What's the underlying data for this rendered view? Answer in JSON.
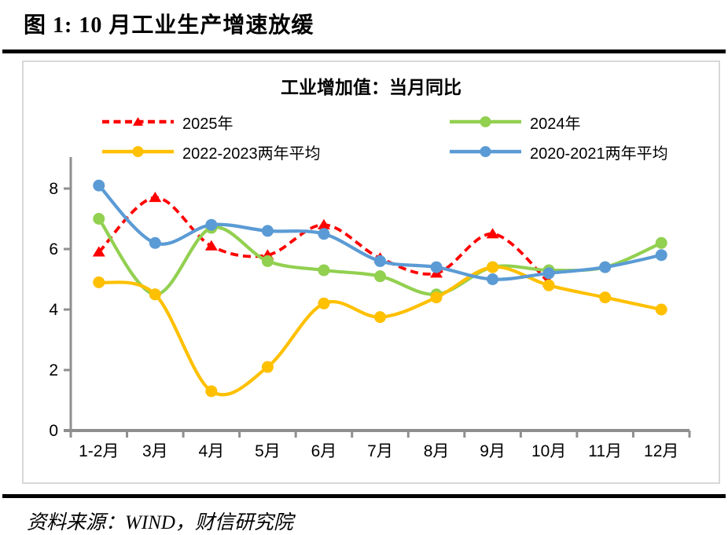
{
  "page": {
    "title": "图 1: 10 月工业生产增速放缓",
    "source_note": "资料来源：WIND，财信研究院"
  },
  "chart_data": {
    "type": "line",
    "title": "工业增加值：当月同比",
    "categories": [
      "1-2月",
      "3月",
      "4月",
      "5月",
      "6月",
      "7月",
      "8月",
      "9月",
      "10月",
      "11月",
      "12月"
    ],
    "series": [
      {
        "name": "2025年",
        "color": "#FF0000",
        "style": "dashed",
        "marker": "triangle",
        "values": [
          5.9,
          7.7,
          6.1,
          5.8,
          6.8,
          5.7,
          5.2,
          6.5,
          4.9
        ]
      },
      {
        "name": "2024年",
        "color": "#92D050",
        "style": "solid",
        "marker": "circle",
        "values": [
          7.0,
          4.5,
          6.7,
          5.6,
          5.3,
          5.1,
          4.5,
          5.4,
          5.3,
          5.4,
          6.2
        ]
      },
      {
        "name": "2022-2023两年平均",
        "color": "#FFC000",
        "style": "solid",
        "marker": "circle",
        "values": [
          4.9,
          4.5,
          1.3,
          2.1,
          4.2,
          3.75,
          4.4,
          5.4,
          4.8,
          4.4,
          4.0
        ]
      },
      {
        "name": "2020-2021两年平均",
        "color": "#5B9BD5",
        "style": "solid",
        "marker": "circle",
        "values": [
          8.1,
          6.2,
          6.8,
          6.6,
          6.5,
          5.6,
          5.4,
          5.0,
          5.2,
          5.4,
          5.8
        ]
      }
    ],
    "y_ticks": [
      0,
      2,
      4,
      6,
      8
    ],
    "ylim": [
      0,
      9
    ],
    "xlabel": "",
    "ylabel": "",
    "grid": false,
    "legend_position": "top",
    "axis_color": "#8F8F8F",
    "label_color": "#000000"
  }
}
